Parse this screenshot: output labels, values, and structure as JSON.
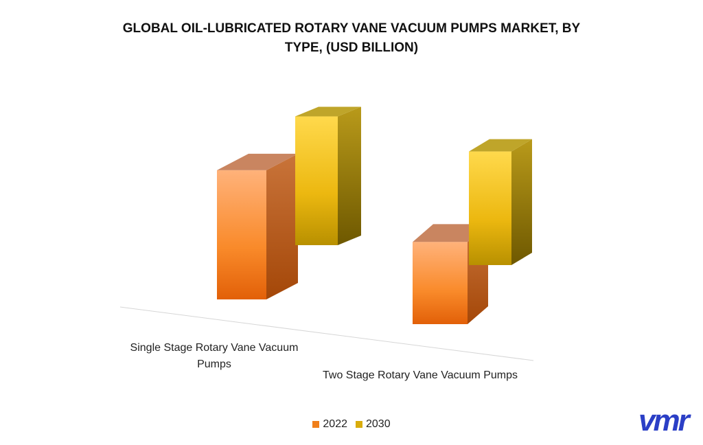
{
  "chart_data": {
    "type": "bar3d",
    "title": "GLOBAL OIL-LUBRICATED ROTARY VANE VACUUM PUMPS MARKET, BY TYPE, (USD BILLION)",
    "categories": [
      "Single Stage Rotary Vane Vacuum Pumps",
      "Two Stage Rotary Vane Vacuum Pumps"
    ],
    "series": [
      {
        "name": "2022",
        "color": "#f07f1a",
        "values": [
          2.2,
          1.4
        ]
      },
      {
        "name": "2030",
        "color": "#d9ac0c",
        "values": [
          2.55,
          2.25
        ]
      }
    ],
    "logo": "vmr"
  }
}
